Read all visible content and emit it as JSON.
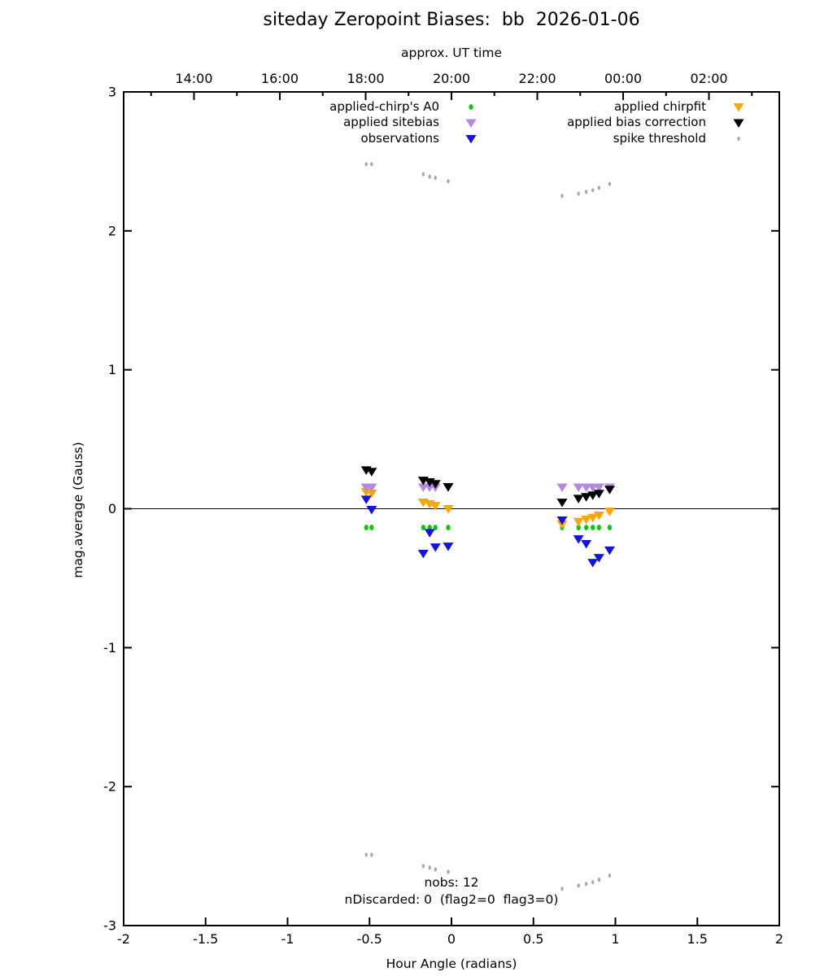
{
  "chart_data": {
    "type": "scatter",
    "title": "siteday Zeropoint Biases:  bb  2026-01-06",
    "xlabel": "Hour Angle (radians)",
    "ylabel": "mag.average (Gauss)",
    "top_axis": {
      "label": "approx. UT time",
      "ticks": [
        {
          "ha": -1.8326,
          "label": ""
        },
        {
          "ha": -1.5708,
          "label": "14:00"
        },
        {
          "ha": -1.309,
          "label": ""
        },
        {
          "ha": -1.0472,
          "label": "16:00"
        },
        {
          "ha": -0.7854,
          "label": ""
        },
        {
          "ha": -0.5236,
          "label": "18:00"
        },
        {
          "ha": -0.2618,
          "label": ""
        },
        {
          "ha": 0,
          "label": "20:00"
        },
        {
          "ha": 0.2618,
          "label": ""
        },
        {
          "ha": 0.5236,
          "label": "22:00"
        },
        {
          "ha": 0.7854,
          "label": ""
        },
        {
          "ha": 1.0472,
          "label": "00:00"
        },
        {
          "ha": 1.309,
          "label": ""
        },
        {
          "ha": 1.5708,
          "label": "02:00"
        },
        {
          "ha": 1.8326,
          "label": ""
        }
      ]
    },
    "xlim": [
      -2,
      2
    ],
    "ylim": [
      -3,
      3
    ],
    "grid": false,
    "x_ticks": [
      {
        "v": -2,
        "label": "-2"
      },
      {
        "v": -1.5,
        "label": "-1.5"
      },
      {
        "v": -1,
        "label": "-1"
      },
      {
        "v": -0.5,
        "label": "-0.5"
      },
      {
        "v": 0,
        "label": "0"
      },
      {
        "v": 0.5,
        "label": "0.5"
      },
      {
        "v": 1,
        "label": "1"
      },
      {
        "v": 1.5,
        "label": "1.5"
      },
      {
        "v": 2,
        "label": "2"
      }
    ],
    "y_ticks": [
      {
        "v": 3,
        "label": "3"
      },
      {
        "v": 2,
        "label": "2"
      },
      {
        "v": 1,
        "label": "1"
      },
      {
        "v": 0,
        "label": "0"
      },
      {
        "v": -1,
        "label": "-1"
      },
      {
        "v": -2,
        "label": "-2"
      },
      {
        "v": -3,
        "label": "-3"
      }
    ],
    "annotations": {
      "nobs": "nobs: 12",
      "ndiscarded": "nDiscarded: 0  (flag2=0  flag3=0)"
    },
    "legend_position": "top-inside-two-columns",
    "legend": {
      "left": [
        0,
        2,
        4
      ],
      "right": [
        1,
        3,
        5
      ]
    },
    "x": [
      -0.52,
      -0.487,
      -0.172,
      -0.133,
      -0.098,
      -0.02,
      0.675,
      0.775,
      0.822,
      0.862,
      0.9,
      0.965
    ],
    "series": [
      {
        "name": "applied-chirp's A0",
        "marker": "dot",
        "color": "#00cc00",
        "values": [
          -0.135,
          -0.135,
          -0.135,
          -0.135,
          -0.135,
          -0.135,
          -0.135,
          -0.135,
          -0.135,
          -0.135,
          -0.135,
          -0.135
        ]
      },
      {
        "name": "applied chirpfit",
        "marker": "triangle-down",
        "color": "#ffa500",
        "values": [
          0.122,
          0.111,
          0.047,
          0.035,
          0.023,
          0.0,
          -0.111,
          -0.092,
          -0.076,
          -0.063,
          -0.047,
          -0.018
        ]
      },
      {
        "name": "applied sitebias",
        "marker": "triangle-down",
        "color": "#b38ae0",
        "values": [
          0.155,
          0.155,
          0.155,
          0.155,
          0.155,
          0.155,
          0.155,
          0.155,
          0.155,
          0.155,
          0.155,
          0.155
        ]
      },
      {
        "name": "applied bias correction",
        "marker": "triangle-down",
        "color": "#000000",
        "values": [
          0.279,
          0.268,
          0.204,
          0.193,
          0.18,
          0.158,
          0.046,
          0.074,
          0.086,
          0.098,
          0.11,
          0.139
        ]
      },
      {
        "name": "observations",
        "marker": "triangle-down",
        "color": "#1414dd",
        "values": [
          0.068,
          -0.006,
          -0.322,
          -0.172,
          -0.276,
          -0.27,
          -0.082,
          -0.217,
          -0.252,
          -0.387,
          -0.352,
          -0.298
        ]
      },
      {
        "name": "spike threshold",
        "marker": "small-dot",
        "color": "#a8a8a8",
        "values_upper": [
          2.48,
          2.48,
          2.408,
          2.39,
          2.382,
          2.357,
          2.252,
          2.268,
          2.28,
          2.292,
          2.31,
          2.338
        ],
        "values_lower": [
          -2.49,
          -2.49,
          -2.572,
          -2.583,
          -2.596,
          -2.613,
          -2.735,
          -2.712,
          -2.7,
          -2.688,
          -2.67,
          -2.64
        ]
      }
    ]
  }
}
